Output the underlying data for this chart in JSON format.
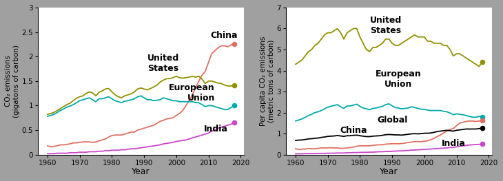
{
  "years": [
    1960,
    1961,
    1962,
    1963,
    1964,
    1965,
    1966,
    1967,
    1968,
    1969,
    1970,
    1971,
    1972,
    1973,
    1974,
    1975,
    1976,
    1977,
    1978,
    1979,
    1980,
    1981,
    1982,
    1983,
    1984,
    1985,
    1986,
    1987,
    1988,
    1989,
    1990,
    1991,
    1992,
    1993,
    1994,
    1995,
    1996,
    1997,
    1998,
    1999,
    2000,
    2001,
    2002,
    2003,
    2004,
    2005,
    2006,
    2007,
    2008,
    2009,
    2010,
    2011,
    2012,
    2013,
    2014,
    2015,
    2016,
    2017,
    2018
  ],
  "china_total": [
    0.18,
    0.16,
    0.17,
    0.18,
    0.2,
    0.2,
    0.21,
    0.22,
    0.24,
    0.24,
    0.25,
    0.26,
    0.26,
    0.26,
    0.25,
    0.26,
    0.28,
    0.3,
    0.32,
    0.36,
    0.39,
    0.4,
    0.4,
    0.4,
    0.42,
    0.44,
    0.46,
    0.46,
    0.5,
    0.52,
    0.54,
    0.56,
    0.58,
    0.6,
    0.64,
    0.68,
    0.7,
    0.73,
    0.74,
    0.75,
    0.8,
    0.84,
    0.9,
    1.0,
    1.1,
    1.22,
    1.36,
    1.5,
    1.62,
    1.7,
    1.88,
    2.06,
    2.12,
    2.18,
    2.22,
    2.22,
    2.2,
    2.24,
    2.26
  ],
  "usa_total": [
    0.82,
    0.84,
    0.86,
    0.9,
    0.94,
    0.98,
    1.02,
    1.05,
    1.1,
    1.15,
    1.18,
    1.2,
    1.25,
    1.28,
    1.26,
    1.2,
    1.27,
    1.3,
    1.34,
    1.35,
    1.28,
    1.22,
    1.18,
    1.16,
    1.2,
    1.22,
    1.24,
    1.28,
    1.34,
    1.36,
    1.34,
    1.32,
    1.35,
    1.38,
    1.42,
    1.48,
    1.52,
    1.55,
    1.55,
    1.57,
    1.6,
    1.57,
    1.56,
    1.57,
    1.58,
    1.6,
    1.58,
    1.6,
    1.54,
    1.45,
    1.5,
    1.5,
    1.48,
    1.46,
    1.45,
    1.42,
    1.4,
    1.4,
    1.42
  ],
  "eu_total": [
    0.78,
    0.8,
    0.82,
    0.86,
    0.9,
    0.93,
    0.97,
    0.99,
    1.02,
    1.06,
    1.1,
    1.12,
    1.14,
    1.16,
    1.12,
    1.08,
    1.14,
    1.14,
    1.16,
    1.18,
    1.14,
    1.1,
    1.08,
    1.06,
    1.09,
    1.1,
    1.12,
    1.14,
    1.18,
    1.2,
    1.16,
    1.12,
    1.12,
    1.1,
    1.11,
    1.12,
    1.16,
    1.14,
    1.12,
    1.1,
    1.1,
    1.08,
    1.08,
    1.08,
    1.08,
    1.08,
    1.06,
    1.06,
    1.02,
    0.98,
    1.0,
    1.0,
    0.98,
    0.96,
    0.94,
    0.92,
    0.92,
    0.96,
    1.0
  ],
  "india_total": [
    0.02,
    0.02,
    0.02,
    0.03,
    0.03,
    0.03,
    0.03,
    0.04,
    0.04,
    0.04,
    0.05,
    0.05,
    0.05,
    0.06,
    0.06,
    0.06,
    0.07,
    0.07,
    0.08,
    0.08,
    0.09,
    0.09,
    0.09,
    0.1,
    0.1,
    0.11,
    0.12,
    0.12,
    0.13,
    0.14,
    0.15,
    0.16,
    0.17,
    0.18,
    0.19,
    0.2,
    0.22,
    0.23,
    0.24,
    0.25,
    0.27,
    0.28,
    0.29,
    0.3,
    0.32,
    0.34,
    0.36,
    0.38,
    0.4,
    0.42,
    0.44,
    0.48,
    0.5,
    0.54,
    0.56,
    0.58,
    0.6,
    0.62,
    0.65
  ],
  "usa_pc": [
    4.3,
    4.4,
    4.5,
    4.7,
    4.9,
    5.0,
    5.2,
    5.3,
    5.5,
    5.7,
    5.8,
    5.8,
    5.9,
    6.0,
    5.8,
    5.5,
    5.8,
    5.9,
    6.0,
    6.0,
    5.6,
    5.3,
    5.0,
    4.9,
    5.1,
    5.1,
    5.2,
    5.3,
    5.5,
    5.5,
    5.3,
    5.2,
    5.2,
    5.3,
    5.4,
    5.5,
    5.6,
    5.7,
    5.6,
    5.6,
    5.6,
    5.4,
    5.4,
    5.3,
    5.3,
    5.3,
    5.2,
    5.2,
    5.0,
    4.7,
    4.8,
    4.8,
    4.7,
    4.6,
    4.5,
    4.4,
    4.3,
    4.2,
    4.4
  ],
  "eu_pc": [
    1.6,
    1.65,
    1.7,
    1.78,
    1.86,
    1.92,
    2.0,
    2.04,
    2.1,
    2.18,
    2.26,
    2.3,
    2.34,
    2.38,
    2.28,
    2.2,
    2.32,
    2.32,
    2.36,
    2.4,
    2.3,
    2.22,
    2.18,
    2.14,
    2.2,
    2.22,
    2.26,
    2.3,
    2.38,
    2.42,
    2.32,
    2.24,
    2.22,
    2.18,
    2.2,
    2.22,
    2.28,
    2.24,
    2.2,
    2.16,
    2.16,
    2.12,
    2.1,
    2.1,
    2.1,
    2.1,
    2.06,
    2.04,
    1.98,
    1.9,
    1.94,
    1.92,
    1.9,
    1.86,
    1.82,
    1.78,
    1.78,
    1.82,
    1.8
  ],
  "china_pc": [
    0.28,
    0.25,
    0.26,
    0.27,
    0.29,
    0.28,
    0.28,
    0.3,
    0.32,
    0.32,
    0.32,
    0.33,
    0.32,
    0.32,
    0.3,
    0.3,
    0.32,
    0.34,
    0.36,
    0.4,
    0.42,
    0.42,
    0.42,
    0.42,
    0.44,
    0.46,
    0.47,
    0.47,
    0.5,
    0.51,
    0.52,
    0.52,
    0.52,
    0.53,
    0.55,
    0.58,
    0.6,
    0.62,
    0.62,
    0.62,
    0.64,
    0.66,
    0.71,
    0.78,
    0.86,
    0.94,
    1.03,
    1.12,
    1.2,
    1.24,
    1.38,
    1.5,
    1.54,
    1.58,
    1.6,
    1.6,
    1.58,
    1.6,
    1.64
  ],
  "india_pc": [
    0.04,
    0.04,
    0.04,
    0.05,
    0.05,
    0.05,
    0.05,
    0.06,
    0.06,
    0.06,
    0.07,
    0.07,
    0.07,
    0.08,
    0.08,
    0.08,
    0.09,
    0.09,
    0.1,
    0.1,
    0.11,
    0.11,
    0.11,
    0.12,
    0.12,
    0.13,
    0.14,
    0.14,
    0.15,
    0.15,
    0.16,
    0.17,
    0.18,
    0.18,
    0.19,
    0.2,
    0.22,
    0.22,
    0.23,
    0.24,
    0.25,
    0.26,
    0.27,
    0.28,
    0.29,
    0.3,
    0.31,
    0.32,
    0.34,
    0.35,
    0.37,
    0.4,
    0.42,
    0.44,
    0.46,
    0.47,
    0.48,
    0.49,
    0.5
  ],
  "global_pc": [
    0.68,
    0.69,
    0.7,
    0.72,
    0.75,
    0.76,
    0.78,
    0.79,
    0.82,
    0.84,
    0.87,
    0.88,
    0.89,
    0.91,
    0.89,
    0.87,
    0.9,
    0.9,
    0.92,
    0.93,
    0.9,
    0.88,
    0.86,
    0.86,
    0.88,
    0.89,
    0.9,
    0.92,
    0.95,
    0.96,
    0.95,
    0.94,
    0.94,
    0.93,
    0.95,
    0.97,
    0.99,
    1.0,
    0.99,
    1.0,
    1.02,
    1.02,
    1.03,
    1.06,
    1.1,
    1.12,
    1.14,
    1.16,
    1.14,
    1.12,
    1.16,
    1.18,
    1.2,
    1.22,
    1.22,
    1.22,
    1.22,
    1.24,
    1.26
  ],
  "color_china": "#e07060",
  "color_usa": "#909000",
  "color_eu": "#00aaaa",
  "color_india": "#cc44cc",
  "color_global": "#000000",
  "left_ylabel": "CO₂ emissions\n(gigatons of carbon)",
  "right_ylabel": "Per capita CO₂ emissions\n(metric tons of carbon)",
  "xlabel": "Year",
  "left_ylim": [
    0,
    3
  ],
  "right_ylim": [
    0,
    7
  ],
  "left_yticks": [
    0,
    0.5,
    1,
    1.5,
    2,
    2.5,
    3
  ],
  "right_yticks": [
    0,
    1,
    2,
    3,
    4,
    5,
    6,
    7
  ],
  "left_ytick_labels": [
    "0",
    "0.5",
    "1",
    "1.5",
    "2",
    "2.5",
    "3"
  ],
  "right_ytick_labels": [
    "0",
    "1",
    "2",
    "3",
    "4",
    "5",
    "6",
    "7"
  ],
  "xticks": [
    1960,
    1970,
    1980,
    1990,
    2000,
    2010,
    2020
  ],
  "xtick_labels": [
    "1960",
    "1970",
    "1980",
    "1990",
    "2000",
    "2010",
    "2020"
  ],
  "dot_year_idx": 58,
  "outer_bg": "#a0a0a0",
  "plot_bg": "#ffffff"
}
